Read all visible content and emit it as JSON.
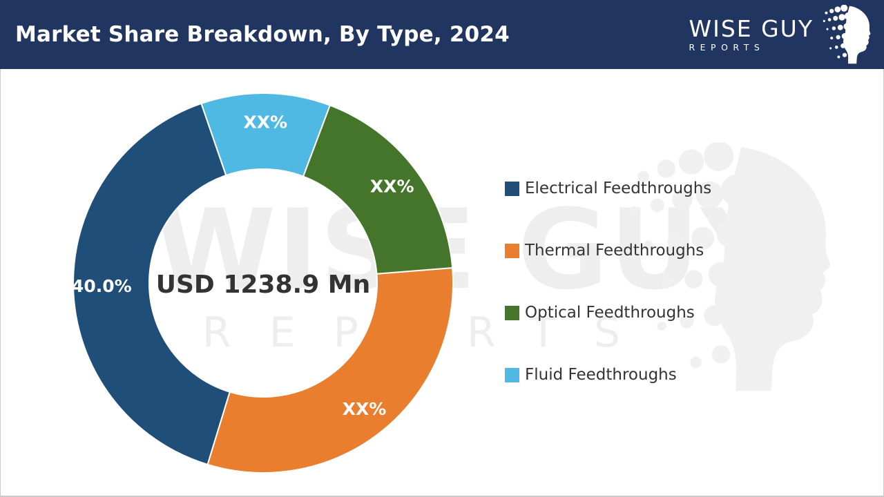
{
  "header": {
    "title": "Market Share Breakdown, By Type, 2024",
    "logo": {
      "line1": "WISE GUY",
      "line2": "REPORTS"
    }
  },
  "watermark": {
    "line1": "WISE GUY",
    "line2": "REPORTS"
  },
  "chart_data": {
    "type": "pie",
    "subtype": "donut",
    "title": "Market Share Breakdown, By Type, 2024",
    "center_label": "USD 1238.9 Mn",
    "start_angle_deg": 109,
    "direction": "counterclockwise",
    "donut_hole_ratio": 0.6,
    "legend_position": "right",
    "segments": [
      {
        "label": "Electrical Feedthroughs",
        "percent": 40,
        "percent_label": "40.0%",
        "color": "#1F4E78"
      },
      {
        "label": "Thermal Feedthroughs",
        "percent": 31,
        "percent_label": "XX%",
        "color": "#E87E2E"
      },
      {
        "label": "Optical Feedthroughs",
        "percent": 18,
        "percent_label": "XX%",
        "color": "#45752A"
      },
      {
        "label": "Fluid Feedthroughs",
        "percent": 11,
        "percent_label": "XX%",
        "color": "#4FB9E4"
      }
    ]
  },
  "colors": {
    "header_bg": "#213561",
    "text_dark": "#333333",
    "watermark": "#EEEEEE",
    "border": "#C9C9C9"
  }
}
